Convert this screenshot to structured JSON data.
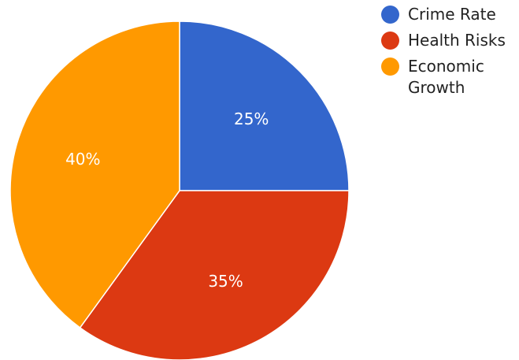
{
  "chart_data": {
    "type": "pie",
    "categories": [
      "Crime Rate",
      "Health Risks",
      "Economic Growth"
    ],
    "values": [
      25,
      35,
      40
    ],
    "labels": [
      "25%",
      "35%",
      "40%"
    ],
    "colors": [
      "#3366cc",
      "#dc3912",
      "#ff9900"
    ],
    "legend_position": "top-right",
    "start_angle": "12 o'clock, clockwise"
  }
}
